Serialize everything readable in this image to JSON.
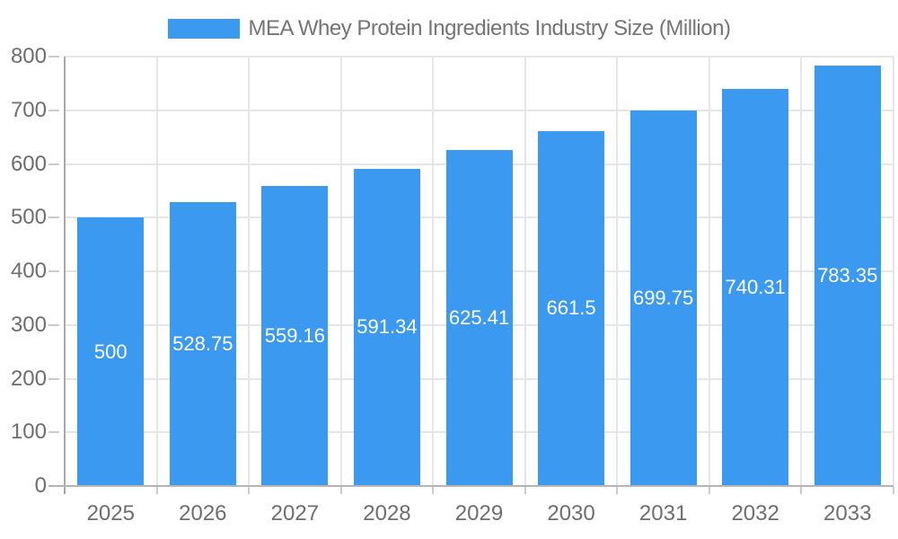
{
  "legend": {
    "label": "MEA Whey Protein Ingredients Industry Size (Million)"
  },
  "chart_data": {
    "type": "bar",
    "title": "MEA Whey Protein Ingredients Industry Size (Million)",
    "categories": [
      "2025",
      "2026",
      "2027",
      "2028",
      "2029",
      "2030",
      "2031",
      "2032",
      "2033"
    ],
    "values": [
      500,
      528.75,
      559.16,
      591.34,
      625.41,
      661.5,
      699.75,
      740.31,
      783.35
    ],
    "bar_labels": [
      "500",
      "528.75",
      "559.16",
      "591.34",
      "625.41",
      "661.5",
      "699.75",
      "740.31",
      "783.35"
    ],
    "xlabel": "",
    "ylabel": "",
    "ylim": [
      0,
      800
    ],
    "ytick_step": 100,
    "ytick_labels": [
      "0",
      "100",
      "200",
      "300",
      "400",
      "500",
      "600",
      "700",
      "800"
    ],
    "grid": true,
    "legend_position": "top",
    "colors": {
      "bar": "#3b99f0",
      "grid": "#e6e6e6",
      "axis_v": "#a9a9a9",
      "axis_h": "#b5b5b5",
      "tick": "#cccccc",
      "label_text": "#6e6e6e",
      "title_text": "#757575",
      "bar_label": "#ffffff",
      "background": "#ffffff"
    }
  }
}
